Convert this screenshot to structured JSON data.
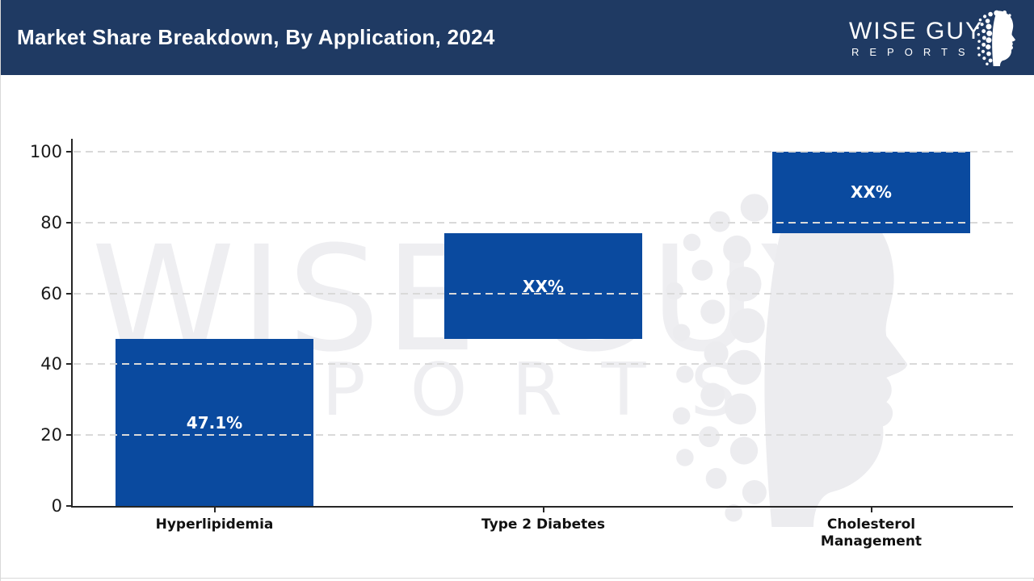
{
  "header": {
    "title": "Market Share Breakdown, By Application, 2024",
    "logo": {
      "line1": "WISE GUY",
      "line2": "REPORTS"
    }
  },
  "watermark": {
    "line1": "WISE GUY",
    "line2": "REPORTS"
  },
  "colors": {
    "header_bg": "#1f3a63",
    "bar": "#0a4a9f",
    "axis": "#262626",
    "grid": "#d9d9d9",
    "text": "#1a1a1a",
    "watermark": "#eeeef1"
  },
  "chart_data": {
    "type": "bar",
    "subtype": "floating-waterfall",
    "title": "Market Share Breakdown, By Application, 2024",
    "categories": [
      "Hyperlipidemia",
      "Type 2 Diabetes",
      "Cholesterol Management"
    ],
    "series": [
      {
        "name": "Market Share",
        "segments": [
          {
            "category": "Hyperlipidemia",
            "start": 0,
            "end": 47.1,
            "label": "47.1%"
          },
          {
            "category": "Type 2 Diabetes",
            "start": 47.1,
            "end": 77,
            "label": "XX%"
          },
          {
            "category": "Cholesterol Management",
            "start": 77,
            "end": 100,
            "label": "XX%"
          }
        ]
      }
    ],
    "xlabel": "",
    "ylabel": "",
    "ylim": [
      0,
      100
    ],
    "yticks": [
      0,
      20,
      40,
      60,
      80,
      100
    ],
    "grid": "horizontal-dashed",
    "legend": "none",
    "bar_color": "#0a4a9f"
  }
}
